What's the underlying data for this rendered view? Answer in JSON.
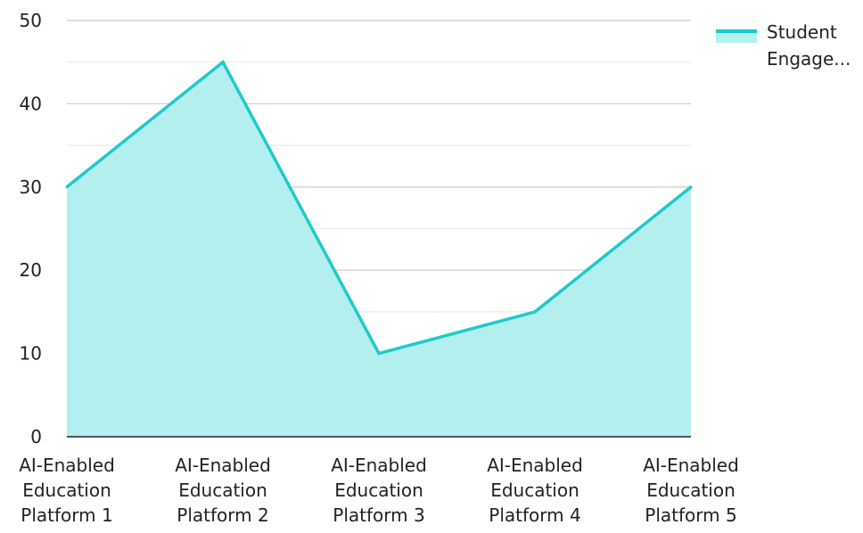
{
  "chart_data": {
    "type": "area",
    "categories": [
      [
        "AI-Enabled",
        "Education",
        "Platform 1"
      ],
      [
        "AI-Enabled",
        "Education",
        "Platform 2"
      ],
      [
        "AI-Enabled",
        "Education",
        "Platform 3"
      ],
      [
        "AI-Enabled",
        "Education",
        "Platform 4"
      ],
      [
        "AI-Enabled",
        "Education",
        "Platform 5"
      ]
    ],
    "series": [
      {
        "name": "Student Engage...",
        "name_lines": [
          "Student",
          "Engage..."
        ],
        "values": [
          30,
          45,
          10,
          15,
          30
        ],
        "line_color": "#1ecbc9",
        "fill_color": "#b3efee"
      }
    ],
    "ylim": [
      0,
      50
    ],
    "yticks": [
      0,
      10,
      20,
      30,
      40,
      50
    ],
    "grid": true,
    "legend_position": "top-right",
    "title": "",
    "xlabel": "",
    "ylabel": ""
  }
}
